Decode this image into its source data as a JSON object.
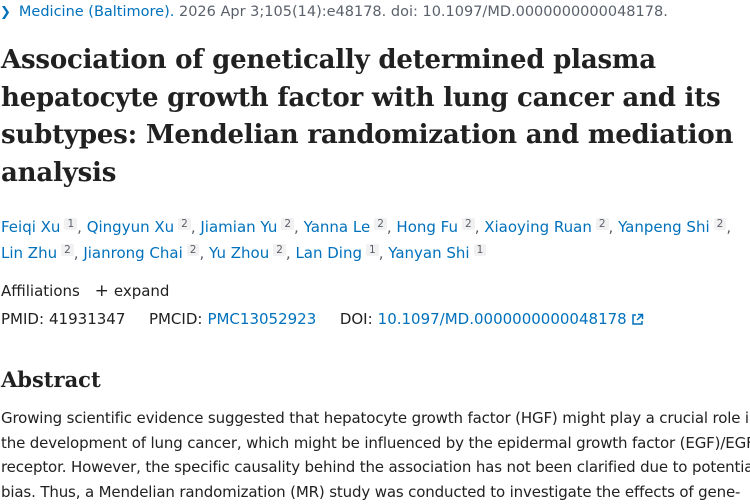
{
  "journal": {
    "chevron_icon": "chevron-right-icon",
    "name": "Medicine (Baltimore).",
    "citation": "2026 Apr 3;105(14):e48178. doi: 10.1097/MD.0000000000048178."
  },
  "article": {
    "title": "Association of genetically determined plasma hepatocyte growth factor with lung cancer and its subtypes: Mendelian randomization and mediation analysis"
  },
  "authors": [
    {
      "name": "Feiqi Xu",
      "aff": "1"
    },
    {
      "name": "Qingyun Xu",
      "aff": "2"
    },
    {
      "name": "Jiamian Yu",
      "aff": "2"
    },
    {
      "name": "Yanna Le",
      "aff": "2"
    },
    {
      "name": "Hong Fu",
      "aff": "2"
    },
    {
      "name": "Xiaoying Ruan",
      "aff": "2"
    },
    {
      "name": "Yanpeng Shi",
      "aff": "2"
    },
    {
      "name": "Lin Zhu",
      "aff": "2"
    },
    {
      "name": "Jianrong Chai",
      "aff": "2"
    },
    {
      "name": "Yu Zhou",
      "aff": "2"
    },
    {
      "name": "Lan Ding",
      "aff": "1"
    },
    {
      "name": "Yanyan Shi",
      "aff": "1"
    }
  ],
  "affiliations": {
    "label": "Affiliations",
    "toggle_symbol": "+",
    "toggle_label": "expand"
  },
  "identifiers": {
    "pmid_label": "PMID:",
    "pmid": "41931347",
    "pmcid_label": "PMCID:",
    "pmcid": "PMC13052923",
    "doi_label": "DOI:",
    "doi": "10.1097/MD.0000000000048178",
    "doi_icon": "external-link-icon"
  },
  "abstract": {
    "heading": "Abstract",
    "text": "Growing scientific evidence suggested that hepatocyte growth factor (HGF) might play a crucial role in the development of lung cancer, which might be influenced by the epidermal growth factor (EGF)/EGF receptor. However, the specific causality behind the association has not been clarified due to potential bias. Thus, a Mendelian randomization (MR) study was conducted to investigate the effects of gene-"
  }
}
